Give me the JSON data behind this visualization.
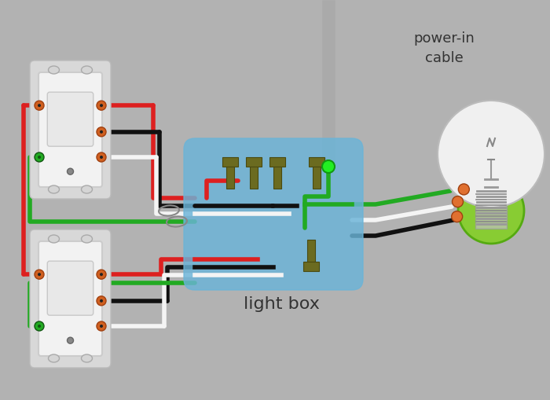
{
  "bg_color": "#b2b2b2",
  "light_box_color": "#6ab4d8",
  "wire_red": "#dd2020",
  "wire_black": "#111111",
  "wire_white": "#f4f4f4",
  "wire_green": "#22aa22",
  "wire_gray": "#999999",
  "wire_lw": 4,
  "cable_color": "#aaaaaa",
  "cable_lw": 12,
  "text_power_in": "power-in\ncable",
  "text_light_box": "light box",
  "plate_color": "#f0f0f0",
  "plate_edge": "#cccccc",
  "screw_orange": "#e07030",
  "screw_green": "#22aa22",
  "terminal_olive": "#6b6b20",
  "bulb_green": "#88cc33",
  "bulb_glass": "#e8e8e8",
  "connector_orange": "#e07030"
}
